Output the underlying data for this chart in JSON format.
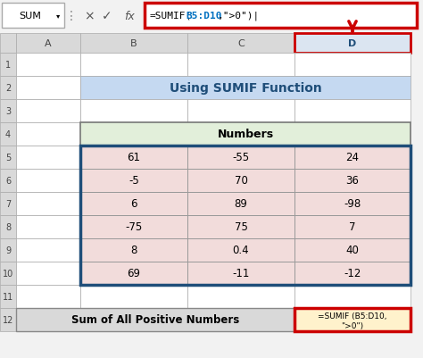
{
  "title": "Using SUMIF Function",
  "formula_bar_name": "SUM",
  "table_header": "Numbers",
  "data": [
    [
      61,
      -55,
      24
    ],
    [
      -5,
      70,
      36
    ],
    [
      6,
      89,
      -98
    ],
    [
      -75,
      75,
      7
    ],
    [
      8,
      0.4,
      40
    ],
    [
      69,
      -11,
      -12
    ]
  ],
  "bottom_left_text": "Sum of All Positive Numbers",
  "bottom_right_line1": "=SUMIF (B5:D10,",
  "bottom_right_line2": "\">0\")",
  "col_labels": [
    "A",
    "B",
    "C",
    "D"
  ],
  "colors": {
    "title_bg": "#c5d9f1",
    "title_text": "#1f4e79",
    "table_header_bg": "#e2efda",
    "data_row_bg": "#f2dcdb",
    "col_header_bg": "#d9d9d9",
    "formula_bar_border": "#cc0000",
    "arrow_color": "#cc0000",
    "bottom_right_bg": "#fff2cc",
    "bottom_left_bg": "#d9d9d9",
    "selected_col_bg": "#dbe5f1",
    "excel_bg": "#f2f2f2"
  }
}
